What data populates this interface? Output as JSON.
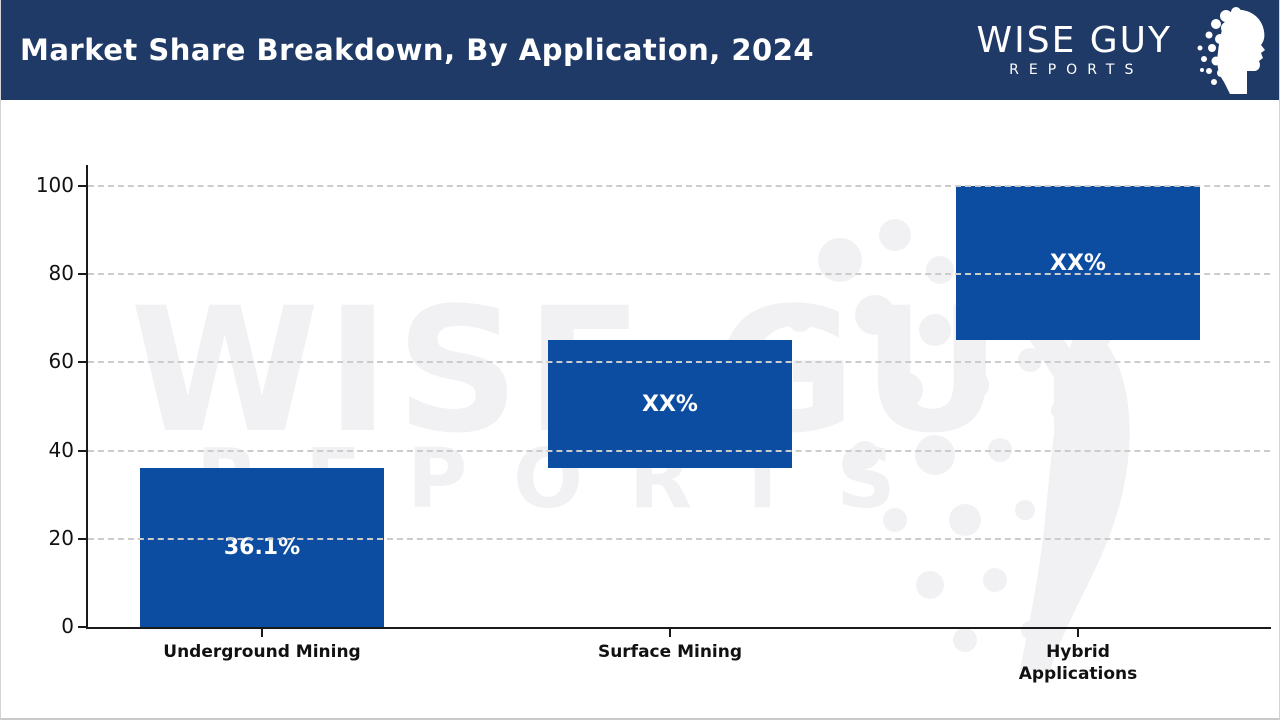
{
  "header": {
    "title": "Market Share Breakdown, By Application, 2024",
    "logo": {
      "brand": "WISE GUY",
      "sub": "REPORTS"
    }
  },
  "watermark": {
    "line1": "WISE GUY",
    "line2": "REPORTS"
  },
  "chart_data": {
    "type": "bar",
    "subtype": "waterfall",
    "title": "Market Share Breakdown, By Application, 2024",
    "categories": [
      "Underground Mining",
      "Surface Mining",
      "Hybrid\nApplications"
    ],
    "segments": [
      {
        "category": "Underground Mining",
        "start": 0,
        "end": 36.1,
        "label": "36.1%"
      },
      {
        "category": "Surface Mining",
        "start": 36.1,
        "end": 65,
        "label": "XX%"
      },
      {
        "category": "Hybrid Applications",
        "start": 65,
        "end": 100,
        "label": "XX%"
      }
    ],
    "xlabel": "",
    "ylabel": "",
    "ylim": [
      0,
      100
    ],
    "yticks": [
      0,
      20,
      40,
      60,
      80,
      100
    ],
    "grid": "horizontal-dashed",
    "legend": "none",
    "bar_color": "#0c4da2",
    "bar_label_color": "#ffffff",
    "header_color": "#1f3a66",
    "axis_color": "#1a1a1a",
    "gridline_color": "#cccccc"
  }
}
